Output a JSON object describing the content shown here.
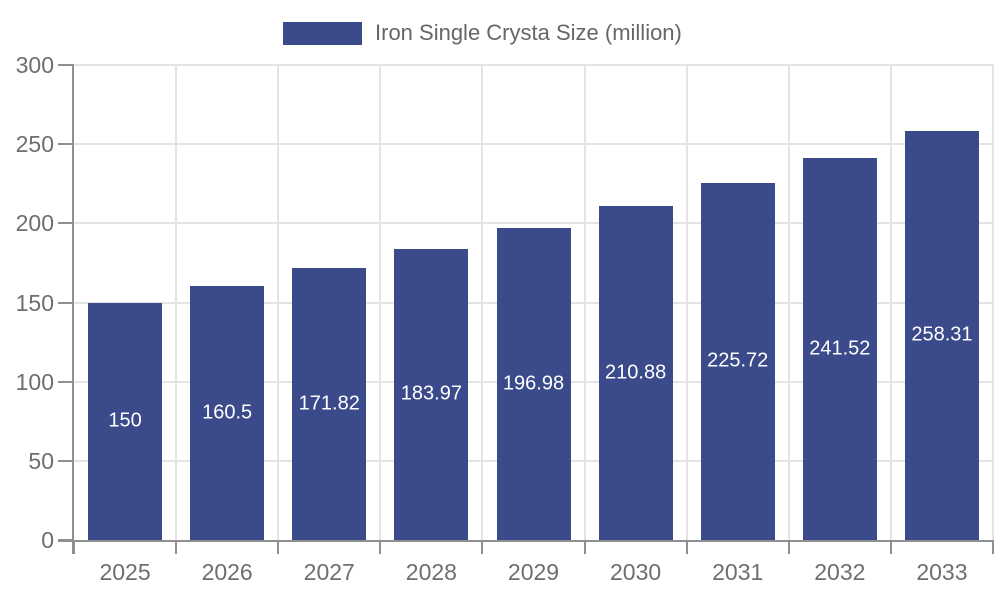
{
  "colors": {
    "bar": "#3A4A8A",
    "axis_line": "#8F8F8F",
    "grid_line": "#E4E4E4",
    "axis_label": "#6E6E6E",
    "legend_text": "#666666",
    "value_label": "#FFFFFF",
    "background": "#FFFFFF"
  },
  "chart_data": {
    "type": "bar",
    "title": "",
    "legend": "Iron Single Crysta Size (million)",
    "legend_position": "top",
    "categories": [
      "2025",
      "2026",
      "2027",
      "2028",
      "2029",
      "2030",
      "2031",
      "2032",
      "2033"
    ],
    "series": [
      {
        "name": "Iron Single Crysta Size (million)",
        "values": [
          150,
          160.5,
          171.82,
          183.97,
          196.98,
          210.88,
          225.72,
          241.52,
          258.31
        ]
      }
    ],
    "xlabel": "",
    "ylabel": "",
    "ylim": [
      0,
      300
    ],
    "yticks": [
      0,
      50,
      100,
      150,
      200,
      250,
      300
    ],
    "grid": true,
    "value_labels_shown": true
  }
}
